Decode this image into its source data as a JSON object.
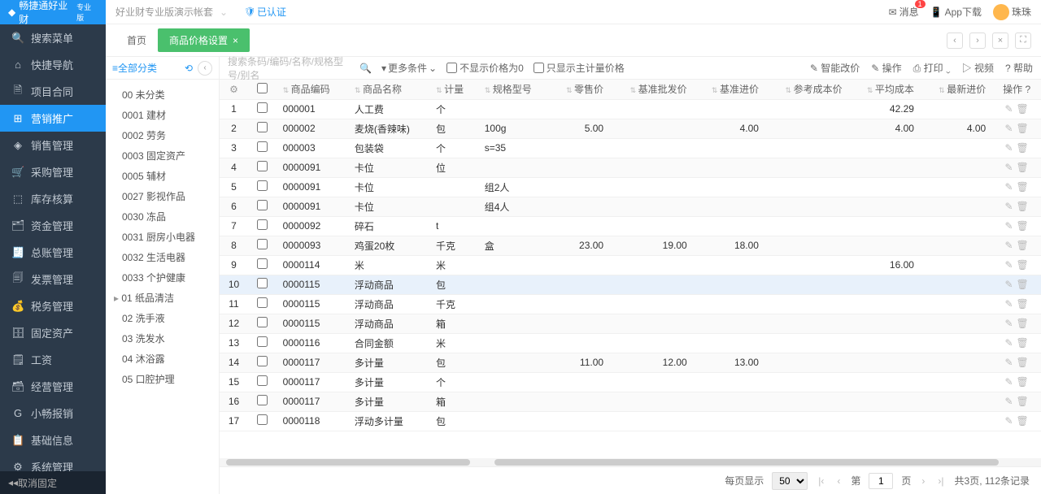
{
  "brand": {
    "name": "畅捷通好业财",
    "sub": "专业版"
  },
  "topbar": {
    "tenant": "好业财专业版演示帐套",
    "verified": "已认证",
    "msg": "消息",
    "msg_badge": "1",
    "app": "App下载",
    "user": "珠珠"
  },
  "sidebar": {
    "items": [
      {
        "icon": "🔍",
        "label": "搜索菜单"
      },
      {
        "icon": "⌂",
        "label": "快捷导航"
      },
      {
        "icon": "🗎",
        "label": "项目合同"
      },
      {
        "icon": "⊞",
        "label": "营销推广",
        "active": true
      },
      {
        "icon": "◈",
        "label": "销售管理"
      },
      {
        "icon": "🛒",
        "label": "采购管理"
      },
      {
        "icon": "⬚",
        "label": "库存核算"
      },
      {
        "icon": "🗂",
        "label": "资金管理"
      },
      {
        "icon": "🧾",
        "label": "总账管理"
      },
      {
        "icon": "🗐",
        "label": "发票管理"
      },
      {
        "icon": "💰",
        "label": "税务管理"
      },
      {
        "icon": "🗄",
        "label": "固定资产"
      },
      {
        "icon": "🗒",
        "label": "工资"
      },
      {
        "icon": "🗃",
        "label": "经营管理"
      },
      {
        "icon": "G",
        "label": "小畅报销"
      },
      {
        "icon": "📋",
        "label": "基础信息"
      },
      {
        "icon": "⚙",
        "label": "系统管理"
      }
    ],
    "unpin": "取消固定"
  },
  "tabs": {
    "home": "首页",
    "active": "商品价格设置"
  },
  "tree": {
    "head": "全部分类",
    "items": [
      "00 未分类",
      "0001 建材",
      "0002 劳务",
      "0003 固定资产",
      "0005 辅材",
      "0027 影视作品",
      "0030 冻品",
      "0031 厨房小电器",
      "0032 生活电器",
      "0033 个护健康",
      "01 纸品清洁",
      "02 洗手液",
      "03 洗发水",
      "04 沐浴露",
      "05 口腔护理"
    ],
    "expanded_index": 10
  },
  "toolbar": {
    "search_ph": "搜索条码/编码/名称/规格型号/别名",
    "more": "更多条件",
    "hide_zero": "不显示价格为0",
    "main_unit": "只显示主计量价格",
    "smart": "智能改价",
    "ops": "操作",
    "print": "打印",
    "video": "视频",
    "help": "帮助"
  },
  "columns": [
    "",
    "",
    "商品编码",
    "商品名称",
    "计量",
    "规格型号",
    "零售价",
    "基准批发价",
    "基准进价",
    "参考成本价",
    "平均成本",
    "最新进价",
    "操作"
  ],
  "rows": [
    {
      "n": 1,
      "code": "000001",
      "name": "人工费",
      "unit": "个",
      "spec": "",
      "ret": "",
      "whl": "",
      "pur": "",
      "ref": "",
      "avg": "42.29",
      "last": ""
    },
    {
      "n": 2,
      "code": "000002",
      "name": "麦烧(香辣味)",
      "unit": "包",
      "spec": "100g",
      "ret": "5.00",
      "whl": "",
      "pur": "4.00",
      "ref": "",
      "avg": "4.00",
      "last": "4.00"
    },
    {
      "n": 3,
      "code": "000003",
      "name": "包装袋",
      "unit": "个",
      "spec": "s=35",
      "ret": "",
      "whl": "",
      "pur": "",
      "ref": "",
      "avg": "",
      "last": ""
    },
    {
      "n": 4,
      "code": "0000091",
      "name": "卡位",
      "unit": "位",
      "spec": "",
      "ret": "",
      "whl": "",
      "pur": "",
      "ref": "",
      "avg": "",
      "last": ""
    },
    {
      "n": 5,
      "code": "0000091",
      "name": "卡位",
      "unit": "",
      "spec": "组2人",
      "ret": "",
      "whl": "",
      "pur": "",
      "ref": "",
      "avg": "",
      "last": ""
    },
    {
      "n": 6,
      "code": "0000091",
      "name": "卡位",
      "unit": "",
      "spec": "组4人",
      "ret": "",
      "whl": "",
      "pur": "",
      "ref": "",
      "avg": "",
      "last": ""
    },
    {
      "n": 7,
      "code": "0000092",
      "name": "碎石",
      "unit": "t",
      "spec": "",
      "ret": "",
      "whl": "",
      "pur": "",
      "ref": "",
      "avg": "",
      "last": ""
    },
    {
      "n": 8,
      "code": "0000093",
      "name": "鸡蛋20枚",
      "unit": "千克",
      "spec": "盒",
      "ret": "23.00",
      "whl": "19.00",
      "pur": "18.00",
      "ref": "",
      "avg": "",
      "last": ""
    },
    {
      "n": 9,
      "code": "0000114",
      "name": "米",
      "unit": "米",
      "spec": "",
      "ret": "",
      "whl": "",
      "pur": "",
      "ref": "",
      "avg": "16.00",
      "last": ""
    },
    {
      "n": 10,
      "code": "0000115",
      "name": "浮动商品",
      "unit": "包",
      "spec": "",
      "ret": "",
      "whl": "",
      "pur": "",
      "ref": "",
      "avg": "",
      "last": "",
      "hl": true
    },
    {
      "n": 11,
      "code": "0000115",
      "name": "浮动商品",
      "unit": "千克",
      "spec": "",
      "ret": "",
      "whl": "",
      "pur": "",
      "ref": "",
      "avg": "",
      "last": ""
    },
    {
      "n": 12,
      "code": "0000115",
      "name": "浮动商品",
      "unit": "箱",
      "spec": "",
      "ret": "",
      "whl": "",
      "pur": "",
      "ref": "",
      "avg": "",
      "last": ""
    },
    {
      "n": 13,
      "code": "0000116",
      "name": "合同金额",
      "unit": "米",
      "spec": "",
      "ret": "",
      "whl": "",
      "pur": "",
      "ref": "",
      "avg": "",
      "last": ""
    },
    {
      "n": 14,
      "code": "0000117",
      "name": "多计量",
      "unit": "包",
      "spec": "",
      "ret": "11.00",
      "whl": "12.00",
      "pur": "13.00",
      "ref": "",
      "avg": "",
      "last": ""
    },
    {
      "n": 15,
      "code": "0000117",
      "name": "多计量",
      "unit": "个",
      "spec": "",
      "ret": "",
      "whl": "",
      "pur": "",
      "ref": "",
      "avg": "",
      "last": ""
    },
    {
      "n": 16,
      "code": "0000117",
      "name": "多计量",
      "unit": "箱",
      "spec": "",
      "ret": "",
      "whl": "",
      "pur": "",
      "ref": "",
      "avg": "",
      "last": ""
    },
    {
      "n": 17,
      "code": "0000118",
      "name": "浮动多计量",
      "unit": "包",
      "spec": "",
      "ret": "",
      "whl": "",
      "pur": "",
      "ref": "",
      "avg": "",
      "last": ""
    }
  ],
  "pager": {
    "per_label": "每页显示",
    "per": "50",
    "page_label_l": "第",
    "page": "1",
    "page_label_r": "页",
    "summary": "共3页, 112条记录"
  },
  "colors": {
    "primary": "#2196f3",
    "sidebar": "#2c3a4a",
    "tab_active": "#4ac06d"
  }
}
